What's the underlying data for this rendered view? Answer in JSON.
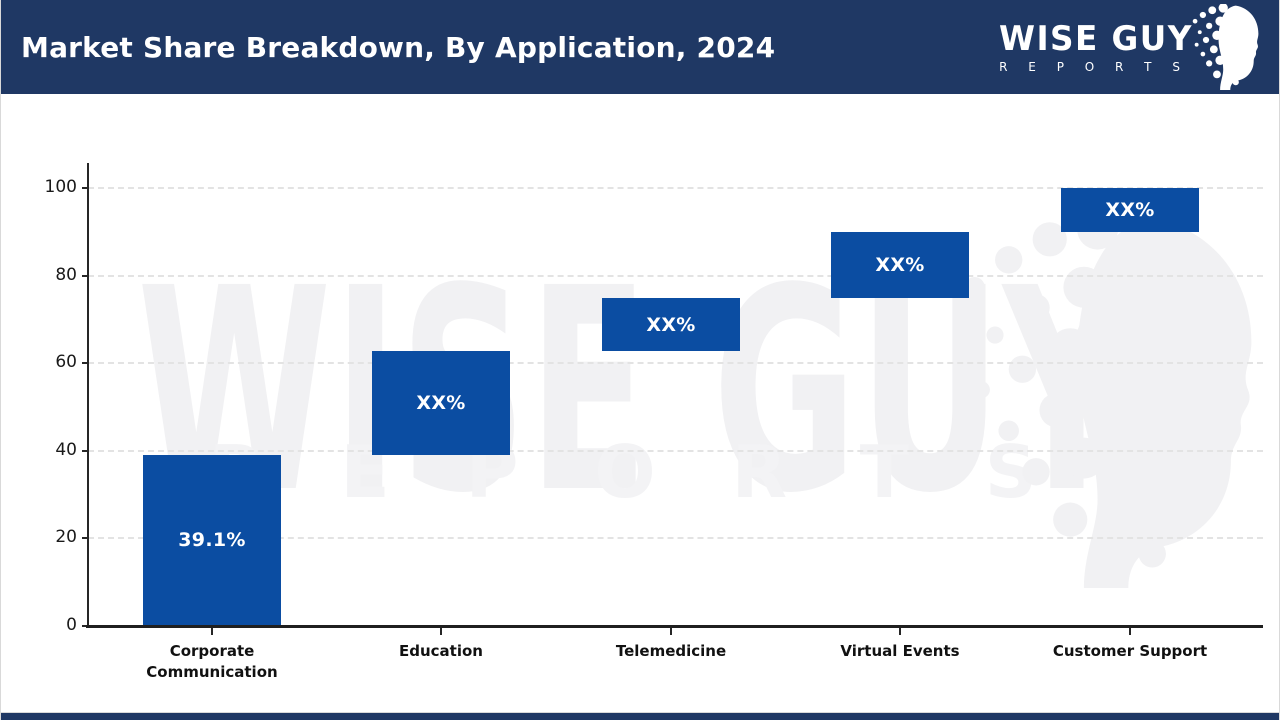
{
  "header": {
    "title": "Market Share Breakdown, By Application, 2024",
    "logo": {
      "line1": "WISE GUY",
      "line2": "R E P O R T S"
    }
  },
  "watermark": {
    "line1": "WISE GUY",
    "line2": "REPORTS"
  },
  "icons": {
    "logo_head": "dotted-face-profile",
    "watermark_head": "dotted-face-profile"
  },
  "colors": {
    "header_bg": "#1f3864",
    "footer_bg": "#1f3864",
    "bar": "#0b4da2",
    "bar_label": "#ffffff",
    "grid": "#e3e3e3",
    "axis": "#262626",
    "watermark": "#f1f1f3"
  },
  "chart_data": {
    "type": "bar",
    "subtype": "waterfall",
    "title": "Market Share Breakdown, By Application, 2024",
    "xlabel": "",
    "ylabel": "",
    "categories": [
      "Corporate Communication",
      "Education",
      "Telemedicine",
      "Virtual Events",
      "Customer Support"
    ],
    "segments": [
      {
        "category": "Corporate Communication",
        "start": 0,
        "end": 39.1,
        "label": "39.1%"
      },
      {
        "category": "Education",
        "start": 39.1,
        "end": 62.7,
        "label": "XX%"
      },
      {
        "category": "Telemedicine",
        "start": 62.7,
        "end": 74.8,
        "label": "XX%"
      },
      {
        "category": "Virtual Events",
        "start": 74.8,
        "end": 89.9,
        "label": "XX%"
      },
      {
        "category": "Customer Support",
        "start": 89.9,
        "end": 100,
        "label": "XX%"
      }
    ],
    "yticks": [
      0,
      20,
      40,
      60,
      80,
      100
    ],
    "ylim": [
      0,
      105
    ],
    "grid": "horizontal-dashed",
    "legend": "none"
  }
}
